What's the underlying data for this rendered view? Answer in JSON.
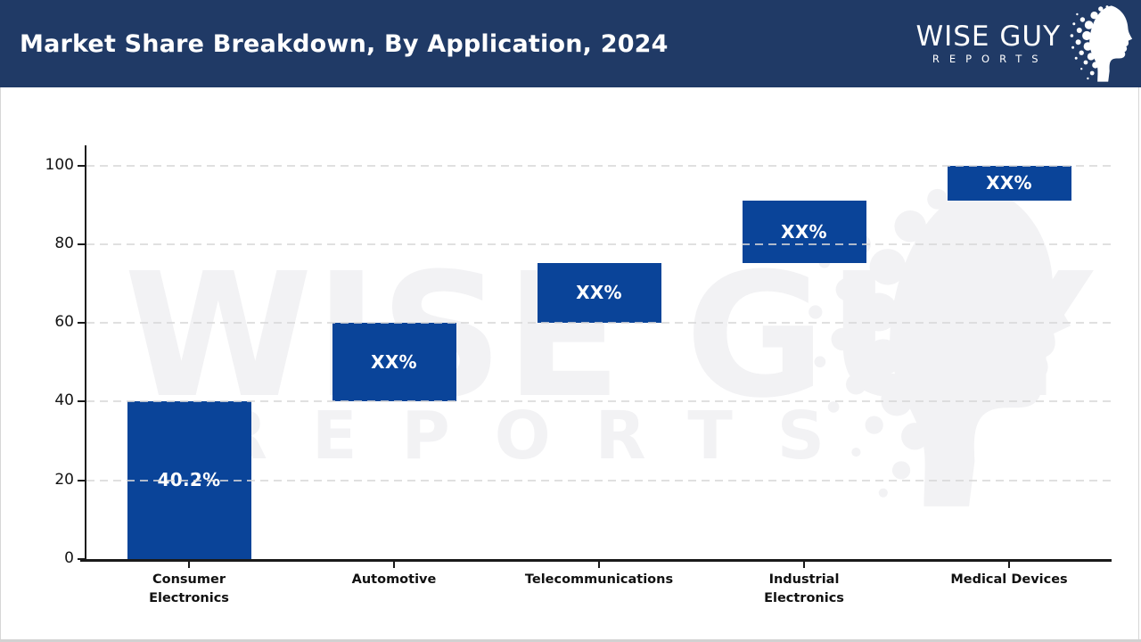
{
  "header": {
    "title": "Market Share Breakdown, By Application, 2024",
    "brand": {
      "line1": "WISE GUY",
      "line2": "REPORTS"
    }
  },
  "watermark": {
    "line1": "WISE GUY",
    "line2": "REPORTS"
  },
  "chart_data": {
    "type": "bar",
    "subtype": "waterfall",
    "title": "Market Share Breakdown, By Application, 2024",
    "categories": [
      "Consumer Electronics",
      "Automotive",
      "Telecommunications",
      "Industrial Electronics",
      "Medical Devices"
    ],
    "category_display": [
      "Consumer\nElectronics",
      "Automotive",
      "Telecommunications",
      "Industrial\nElectronics",
      "Medical Devices"
    ],
    "segments": [
      {
        "category": "Consumer Electronics",
        "start": 0,
        "end": 40.2,
        "label": "40.2%"
      },
      {
        "category": "Automotive",
        "start": 40.2,
        "end": 60,
        "label": "XX%"
      },
      {
        "category": "Telecommunications",
        "start": 60,
        "end": 75.3,
        "label": "XX%"
      },
      {
        "category": "Industrial Electronics",
        "start": 75.3,
        "end": 91,
        "label": "XX%"
      },
      {
        "category": "Medical Devices",
        "start": 91,
        "end": 100,
        "label": "XX%"
      }
    ],
    "bar_labels": [
      "40.2%",
      "XX%",
      "XX%",
      "XX%",
      "XX%"
    ],
    "yticks": [
      0,
      20,
      40,
      60,
      80,
      100
    ],
    "ylim": [
      0,
      105
    ],
    "xlabel": "",
    "ylabel": "",
    "grid": "horizontal-dashed",
    "legend": "none"
  },
  "colors": {
    "header_bg": "#203a66",
    "bar": "#0a4499",
    "grid": "#d8d8d8",
    "axis": "#1a1a1a",
    "bar_label": "#ffffff",
    "watermark": "#f2f2f4",
    "border": "#d2d2d2"
  }
}
